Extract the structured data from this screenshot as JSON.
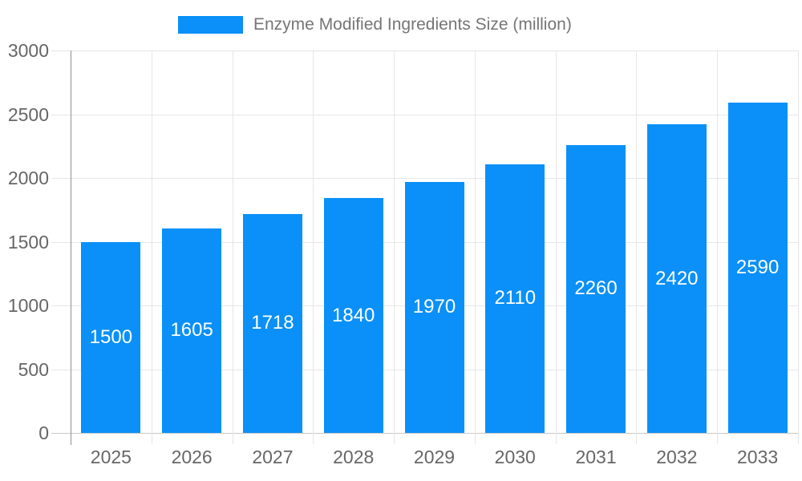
{
  "chart_data": {
    "type": "bar",
    "title": "",
    "categories": [
      "2025",
      "2026",
      "2027",
      "2028",
      "2029",
      "2030",
      "2031",
      "2032",
      "2033"
    ],
    "values": [
      1500,
      1605,
      1718,
      1840,
      1970,
      2110,
      2260,
      2420,
      2590
    ],
    "legend": [
      "Enzyme Modified Ingredients Size (million)"
    ],
    "legend_position": "top",
    "xlabel": "",
    "ylabel": "",
    "ylim": [
      0,
      3000
    ],
    "yticks": [
      0,
      500,
      1000,
      1500,
      2000,
      2500,
      3000
    ],
    "grid": true,
    "value_labels_shown": true,
    "bar_color": "#0a90f8",
    "value_label_color": "#ffffff",
    "axis_text_color": "#666666",
    "legend_text_color": "#757575",
    "grid_color": "#e6e6e6",
    "axis_line_color": "#8f8f8f",
    "background_color": "#ffffff"
  }
}
